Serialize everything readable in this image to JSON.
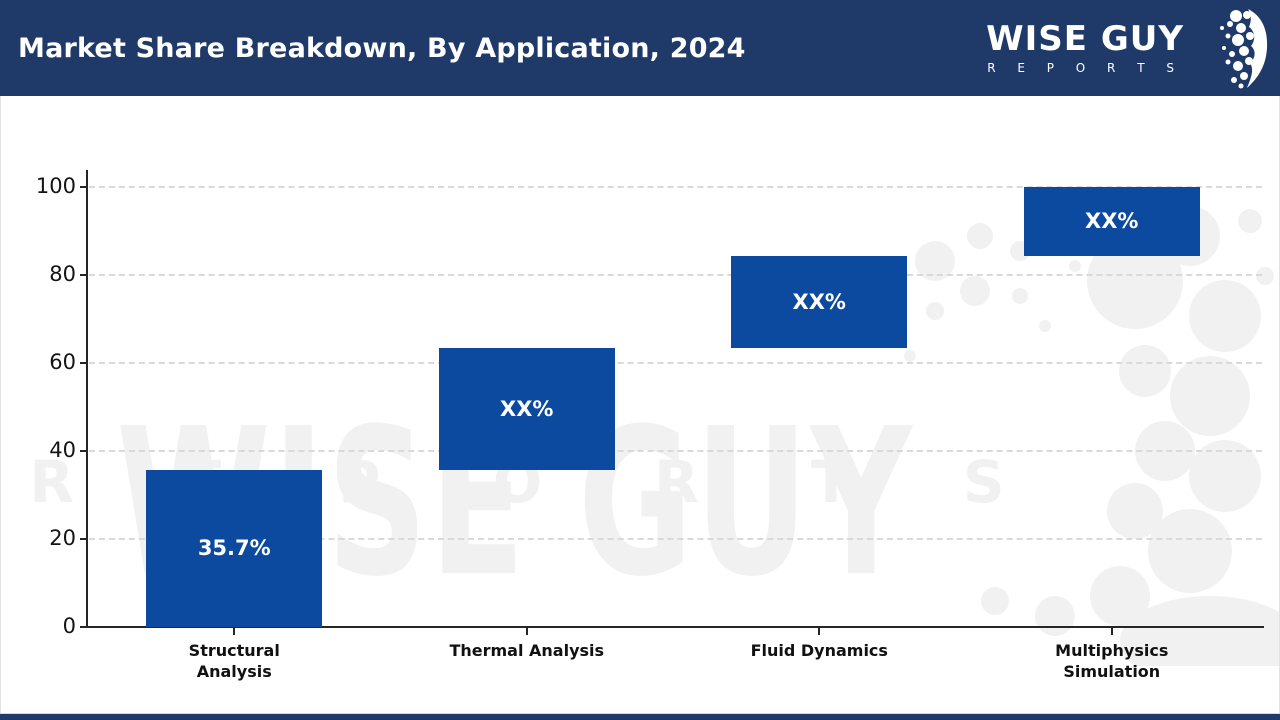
{
  "header": {
    "title": "Market Share Breakdown, By Application, 2024",
    "logo": {
      "line1": "WISE GUY",
      "line2": "R E P O R T S"
    }
  },
  "colors": {
    "header_bg": "#1f3a68",
    "bar": "#0b4a9f",
    "bar_label": "#ffffff",
    "grid": "#d9d9d9",
    "axis": "#262626",
    "watermark": "#f1f1f1",
    "footer_bg": "#1f3a68"
  },
  "watermark": {
    "line1": "WISE GUY",
    "line2": "R E P O R T S"
  },
  "chart_data": {
    "type": "bar",
    "subtype": "waterfall-stacked-segments",
    "title": "Market Share Breakdown, By Application, 2024",
    "categories": [
      "Structural Analysis",
      "Thermal Analysis",
      "Fluid Dynamics",
      "Multiphysics Simulation"
    ],
    "category_lines": [
      [
        "Structural",
        "Analysis"
      ],
      [
        "Thermal Analysis"
      ],
      [
        "Fluid Dynamics"
      ],
      [
        "Multiphysics",
        "Simulation"
      ]
    ],
    "segments": [
      {
        "category": "Structural Analysis",
        "start": 0,
        "end": 35.7,
        "label": "35.7%"
      },
      {
        "category": "Thermal Analysis",
        "start": 35.7,
        "end": 63.3,
        "label": "XX%"
      },
      {
        "category": "Fluid Dynamics",
        "start": 63.4,
        "end": 84.3,
        "label": "XX%"
      },
      {
        "category": "Multiphysics Simulation",
        "start": 84.4,
        "end": 100,
        "label": "XX%"
      }
    ],
    "ylim": [
      0,
      100
    ],
    "yticks": [
      0,
      20,
      40,
      60,
      80,
      100
    ],
    "xlabel": "",
    "ylabel": "",
    "grid": "horizontal-dashed",
    "legend": "none"
  }
}
